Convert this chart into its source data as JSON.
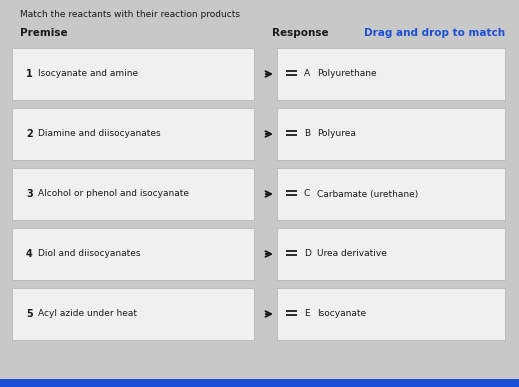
{
  "title": "Match the reactants with their reaction products",
  "premise_label": "Premise",
  "response_label": "Response",
  "drag_label": "Drag and drop to match",
  "premises": [
    {
      "num": "1",
      "text": "Isocyanate and amine"
    },
    {
      "num": "2",
      "text": "Diamine and diisocyanates"
    },
    {
      "num": "3",
      "text": "Alcohol or phenol and isocyanate"
    },
    {
      "num": "4",
      "text": "Diol and diisocyanates"
    },
    {
      "num": "5",
      "text": "Acyl azide under heat"
    }
  ],
  "responses": [
    {
      "letter": "A",
      "text": "Polyurethane"
    },
    {
      "letter": "B",
      "text": "Polyurea"
    },
    {
      "letter": "C",
      "text": "Carbamate (urethane)"
    },
    {
      "letter": "D",
      "text": "Urea derivative"
    },
    {
      "letter": "E",
      "text": "Isocyanate"
    }
  ],
  "bg_color": "#c8c8c8",
  "box_color": "#f0f0f0",
  "border_color": "#bbbbbb",
  "text_color": "#1a1a1a",
  "num_color": "#1a1a1a",
  "header_color": "#1a1a1a",
  "drag_color": "#1a4fd6",
  "arrow_color": "#1a1a1a",
  "bottom_bar_color": "#1a4fd6",
  "title_fontsize": 6.5,
  "header_fontsize": 7.5,
  "row_fontsize": 6.5,
  "num_fontsize": 7.0
}
